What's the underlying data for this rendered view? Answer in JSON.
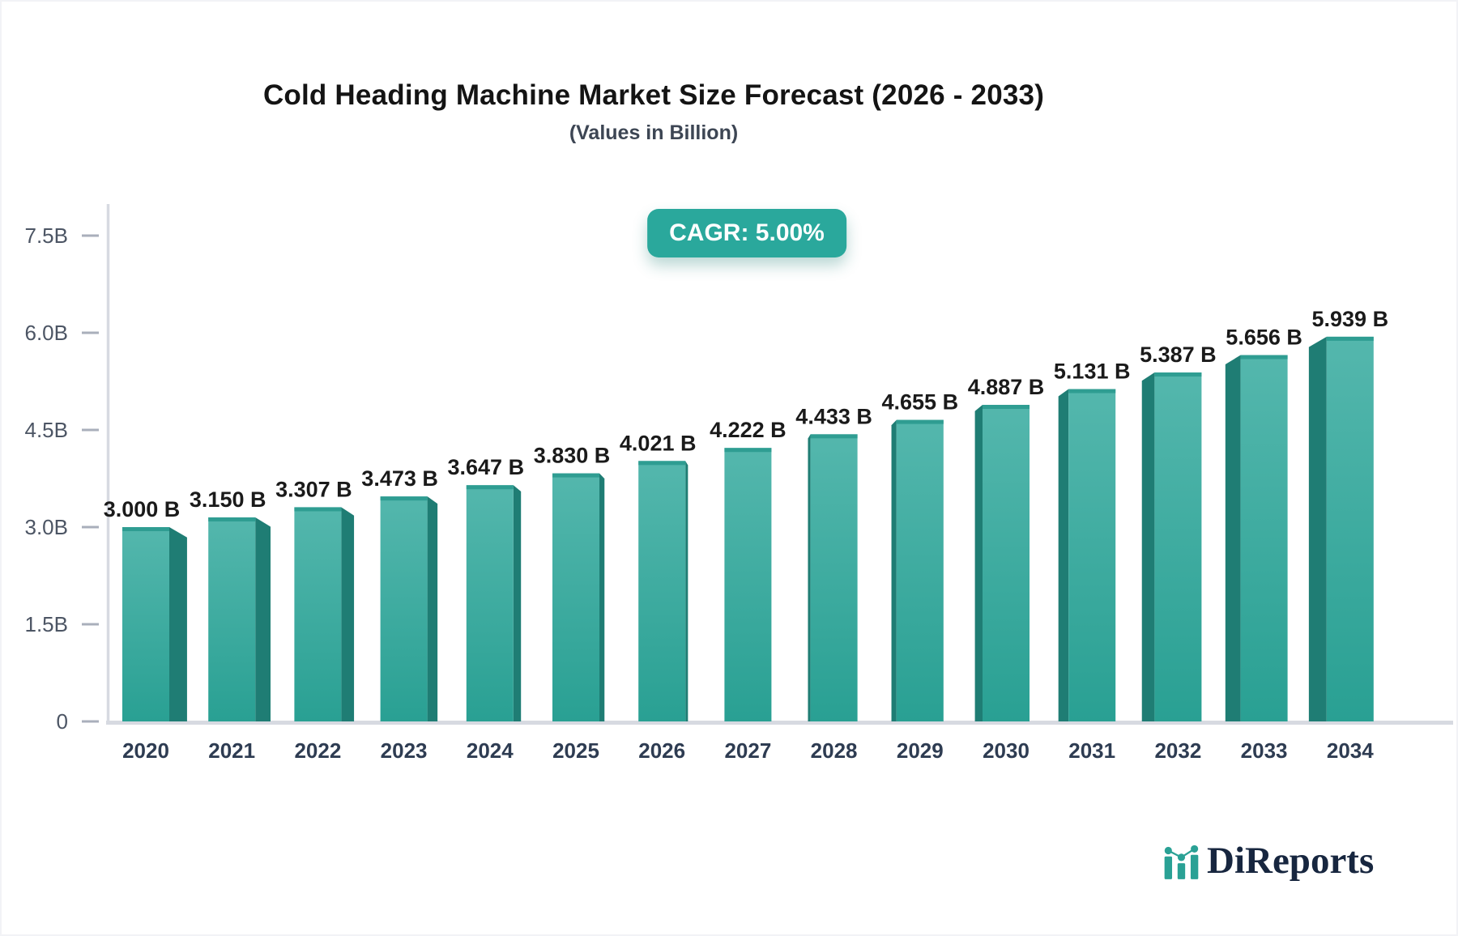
{
  "header": {
    "title": "Cold Heading Machine Market Size Forecast (2026 - 2033)",
    "subtitle": "(Values in Billion)",
    "cagr_badge": "CAGR: 5.00%"
  },
  "logo": {
    "text": "DiReports",
    "icon": "mini-bar-line-chart-icon"
  },
  "colors": {
    "accent_teal": "#2aa89c",
    "bar_face_top": "#54b7ad",
    "bar_face_bottom": "#29a093",
    "bar_top_edge": "#2f9d92",
    "bar_side": "#1f7d74",
    "axis_line": "#d7dae1",
    "tick_mark": "#a9afbb",
    "tick_label": "#4c5564",
    "year_label": "#2e3c52",
    "value_label": "#1a1a1a",
    "logo_navy": "#17263f"
  },
  "chart_data": {
    "type": "bar",
    "title": "Cold Heading Machine Market Size Forecast (2026 - 2033)",
    "subtitle": "(Values in Billion)",
    "annotation": "CAGR: 5.00%",
    "categories": [
      "2020",
      "2021",
      "2022",
      "2023",
      "2024",
      "2025",
      "2026",
      "2027",
      "2028",
      "2029",
      "2030",
      "2031",
      "2032",
      "2033",
      "2034"
    ],
    "values": [
      3.0,
      3.15,
      3.307,
      3.473,
      3.647,
      3.83,
      4.021,
      4.222,
      4.433,
      4.655,
      4.887,
      5.131,
      5.387,
      5.656,
      5.939
    ],
    "value_labels": [
      "3.000 B",
      "3.150 B",
      "3.307 B",
      "3.473 B",
      "3.647 B",
      "3.830 B",
      "4.021 B",
      "4.222 B",
      "4.433 B",
      "4.655 B",
      "4.887 B",
      "5.131 B",
      "5.387 B",
      "5.656 B",
      "5.939 B"
    ],
    "xlabel": "",
    "ylabel": "",
    "ylim": [
      0,
      7.5
    ],
    "yticks": [
      0,
      1.5,
      3.0,
      4.5,
      6.0,
      7.5
    ],
    "ytick_labels": [
      "0",
      "1.5B",
      "3.0B",
      "4.5B",
      "6.0B",
      "7.5B"
    ],
    "grid": false,
    "legend": "none",
    "bar_style": "3d-perspective-teal"
  }
}
